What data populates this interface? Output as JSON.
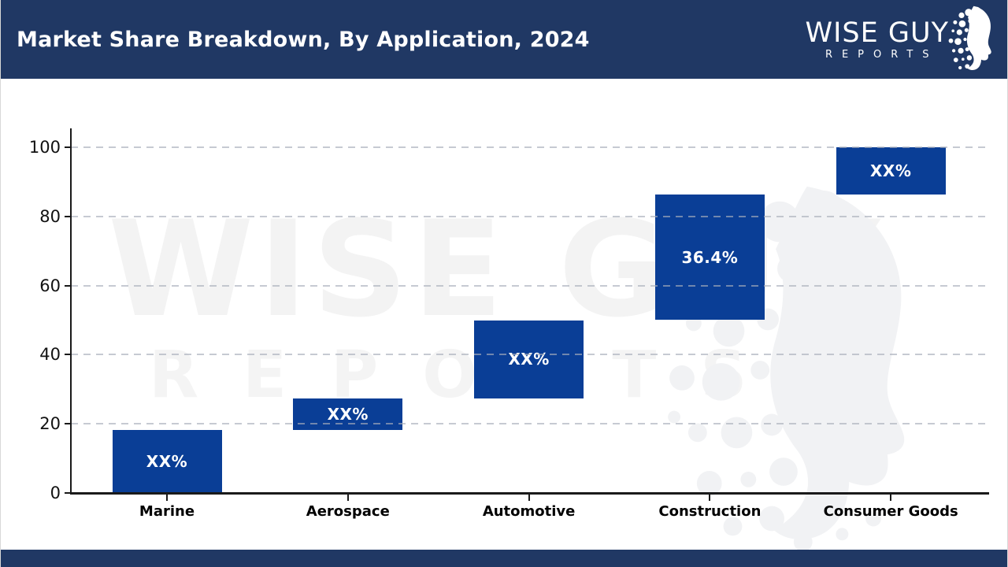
{
  "header": {
    "title": "Market Share Breakdown, By Application, 2024",
    "bg_color": "#203864",
    "logo": {
      "wordmark": "WISE GUY",
      "subtext": "REPORTS"
    }
  },
  "watermark": {
    "wordmark": "WISE GUY",
    "subtext": "REPORTS"
  },
  "footer": {
    "bg_color": "#203864"
  },
  "chart_data": {
    "type": "bar",
    "variant": "waterfall",
    "title": "Market Share Breakdown, By Application, 2024",
    "categories": [
      "Marine",
      "Aerospace",
      "Automotive",
      "Construction",
      "Consumer Goods"
    ],
    "bars": [
      {
        "category": "Marine",
        "start": 0,
        "end": 18.2,
        "value": 18.2,
        "label": "XX%"
      },
      {
        "category": "Aerospace",
        "start": 18.2,
        "end": 27.3,
        "value": 9.1,
        "label": "XX%"
      },
      {
        "category": "Automotive",
        "start": 27.3,
        "end": 50.0,
        "value": 22.7,
        "label": "XX%"
      },
      {
        "category": "Construction",
        "start": 50.0,
        "end": 86.4,
        "value": 36.4,
        "label": "36.4%"
      },
      {
        "category": "Consumer Goods",
        "start": 86.4,
        "end": 100.0,
        "value": 13.6,
        "label": "XX%"
      }
    ],
    "xlabel": "",
    "ylabel": "",
    "ylim": [
      0,
      100
    ],
    "yticks": [
      0,
      20,
      40,
      60,
      80,
      100
    ],
    "grid": {
      "horizontal": true,
      "style": "dashed",
      "over_bars": true
    },
    "legend": "none",
    "bar_color": "#0a3e96",
    "bar_label_color": "#ffffff"
  }
}
